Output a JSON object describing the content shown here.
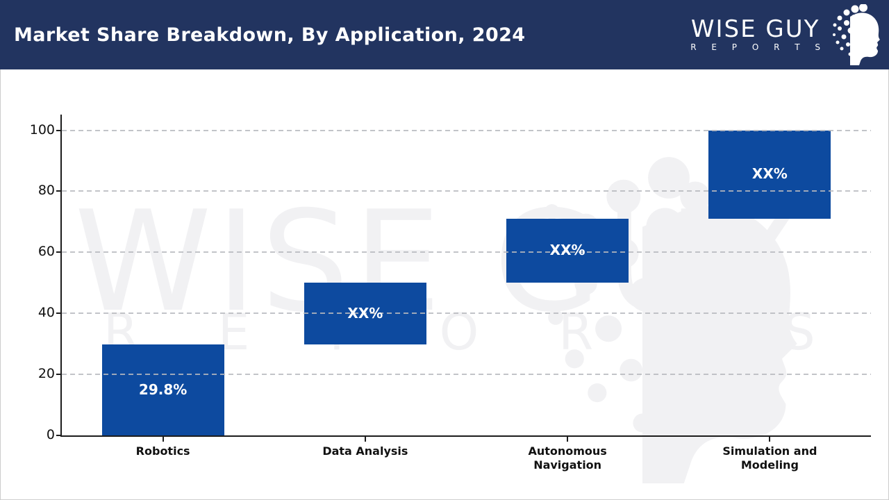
{
  "header": {
    "title": "Market Share Breakdown, By Application, 2024",
    "bg_color": "#223460",
    "logo": {
      "line1": "WISE GUY",
      "line2": "R E P O R T S"
    }
  },
  "watermark": {
    "line1": "WISE GUY",
    "line2": "R E P O R T S",
    "color": "#f1f1f3"
  },
  "chart_data": {
    "type": "bar",
    "subtype": "waterfall",
    "title": "Market Share Breakdown, By Application, 2024",
    "xlabel": "",
    "ylabel": "",
    "categories": [
      "Robotics",
      "Data Analysis",
      "Autonomous Navigation",
      "Simulation and Modeling"
    ],
    "category_label_lines": [
      [
        "Robotics"
      ],
      [
        "Data Analysis"
      ],
      [
        "Autonomous",
        "Navigation"
      ],
      [
        "Simulation and",
        "Modeling"
      ]
    ],
    "segments": [
      {
        "category": "Robotics",
        "start": 0,
        "end": 29.8,
        "value": 29.8,
        "label": "29.8%"
      },
      {
        "category": "Data Analysis",
        "start": 29.8,
        "end": 50.0,
        "value": 20.2,
        "label": "XX%"
      },
      {
        "category": "Autonomous Navigation",
        "start": 50.0,
        "end": 71.0,
        "value": 21.0,
        "label": "XX%"
      },
      {
        "category": "Simulation and Modeling",
        "start": 71.0,
        "end": 100.0,
        "value": 29.0,
        "label": "XX%"
      }
    ],
    "y_ticks": [
      0,
      20,
      40,
      60,
      80,
      100
    ],
    "ylim": [
      0,
      100
    ],
    "grid": "horizontal-dashed",
    "legend": "none",
    "bar_color": "#0d4a9f",
    "bar_label_color": "#ffffff",
    "axis_color": "#1c1c1c",
    "grid_color": "#d9d9d9"
  }
}
